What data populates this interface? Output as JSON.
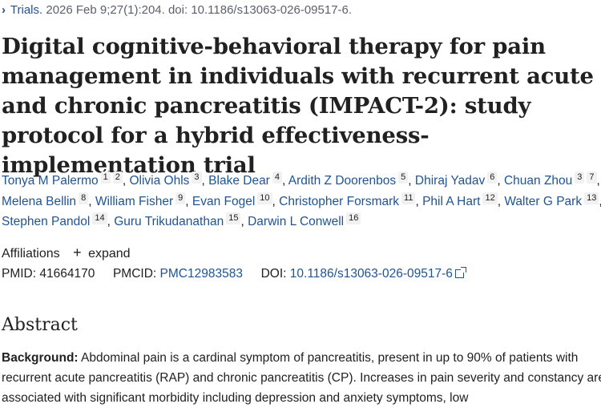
{
  "citation": {
    "journal": "Trials.",
    "details": "2026 Feb 9;27(1):204. doi: 10.1186/s13063-026-09517-6."
  },
  "title": "Digital cognitive-behavioral therapy for pain management in individuals with recurrent acute and chronic pancreatitis (IMPACT-2): study protocol for a hybrid effectiveness-implementation trial",
  "authors": [
    {
      "name": "Tonya M Palermo",
      "affils": [
        "1",
        "2"
      ]
    },
    {
      "name": "Olivia Ohls",
      "affils": [
        "3"
      ]
    },
    {
      "name": "Blake Dear",
      "affils": [
        "4"
      ]
    },
    {
      "name": "Ardith Z Doorenbos",
      "affils": [
        "5"
      ]
    },
    {
      "name": "Dhiraj Yadav",
      "affils": [
        "6"
      ]
    },
    {
      "name": "Chuan Zhou",
      "affils": [
        "3",
        "7"
      ]
    },
    {
      "name": "Melena Bellin",
      "affils": [
        "8"
      ]
    },
    {
      "name": "William Fisher",
      "affils": [
        "9"
      ]
    },
    {
      "name": "Evan Fogel",
      "affils": [
        "10"
      ]
    },
    {
      "name": "Christopher Forsmark",
      "affils": [
        "11"
      ]
    },
    {
      "name": "Phil A Hart",
      "affils": [
        "12"
      ]
    },
    {
      "name": "Walter G Park",
      "affils": [
        "13"
      ]
    },
    {
      "name": "Stephen Pandol",
      "affils": [
        "14"
      ]
    },
    {
      "name": "Guru Trikudanathan",
      "affils": [
        "15"
      ]
    },
    {
      "name": "Darwin L Conwell",
      "affils": [
        "16"
      ]
    }
  ],
  "affiliations": {
    "label": "Affiliations",
    "expand_label": "expand"
  },
  "ids": {
    "pmid_label": "PMID:",
    "pmid": "41664170",
    "pmcid_label": "PMCID:",
    "pmcid": "PMC12983583",
    "doi_label": "DOI:",
    "doi": "10.1186/s13063-026-09517-6"
  },
  "abstract": {
    "heading": "Abstract",
    "background_label": "Background:",
    "background_text": "Abdominal pain is a cardinal symptom of pancreatitis, present in up to 90% of patients with recurrent acute pancreatitis (RAP) and chronic pancreatitis (CP). Increases in pain severity and constancy are associated with significant morbidity including depression and anxiety symptoms, low"
  },
  "icons": {
    "chevron": "chevron-right-icon",
    "plus": "plus-icon",
    "external": "external-link-icon"
  },
  "colors": {
    "link": "#205493",
    "text": "#212121",
    "muted": "#5b616b"
  }
}
